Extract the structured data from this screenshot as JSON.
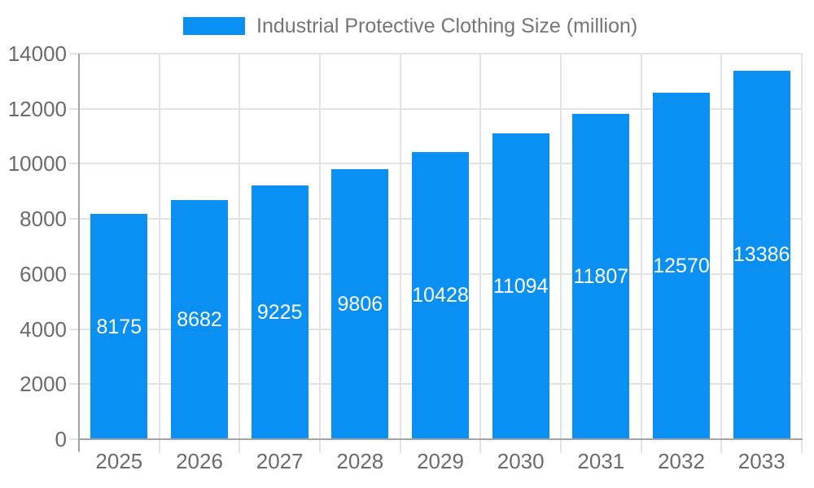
{
  "chart_data": {
    "type": "bar",
    "title": "Industrial Protective Clothing Size (million)",
    "legend": {
      "position": "top",
      "label": "Industrial Protective Clothing Size (million)"
    },
    "categories": [
      "2025",
      "2026",
      "2027",
      "2028",
      "2029",
      "2030",
      "2031",
      "2032",
      "2033"
    ],
    "values": [
      8175,
      8682,
      9225,
      9806,
      10428,
      11094,
      11807,
      12570,
      13386
    ],
    "xlabel": "",
    "ylabel": "",
    "ylim": [
      0,
      14000
    ],
    "ytick_step": 2000,
    "ytick_labels": [
      "0",
      "2000",
      "4000",
      "6000",
      "8000",
      "10000",
      "12000",
      "14000"
    ],
    "grid": true,
    "value_label_position": "inside-center",
    "colors": {
      "bar": "#0a8ff2",
      "value_label_text": "#ffffff",
      "axis_line": "#a3a3a3",
      "gridline": "#e3e3e3",
      "axis_text": "#6b6b6b",
      "title_text": "#757575",
      "background": "#ffffff"
    }
  }
}
